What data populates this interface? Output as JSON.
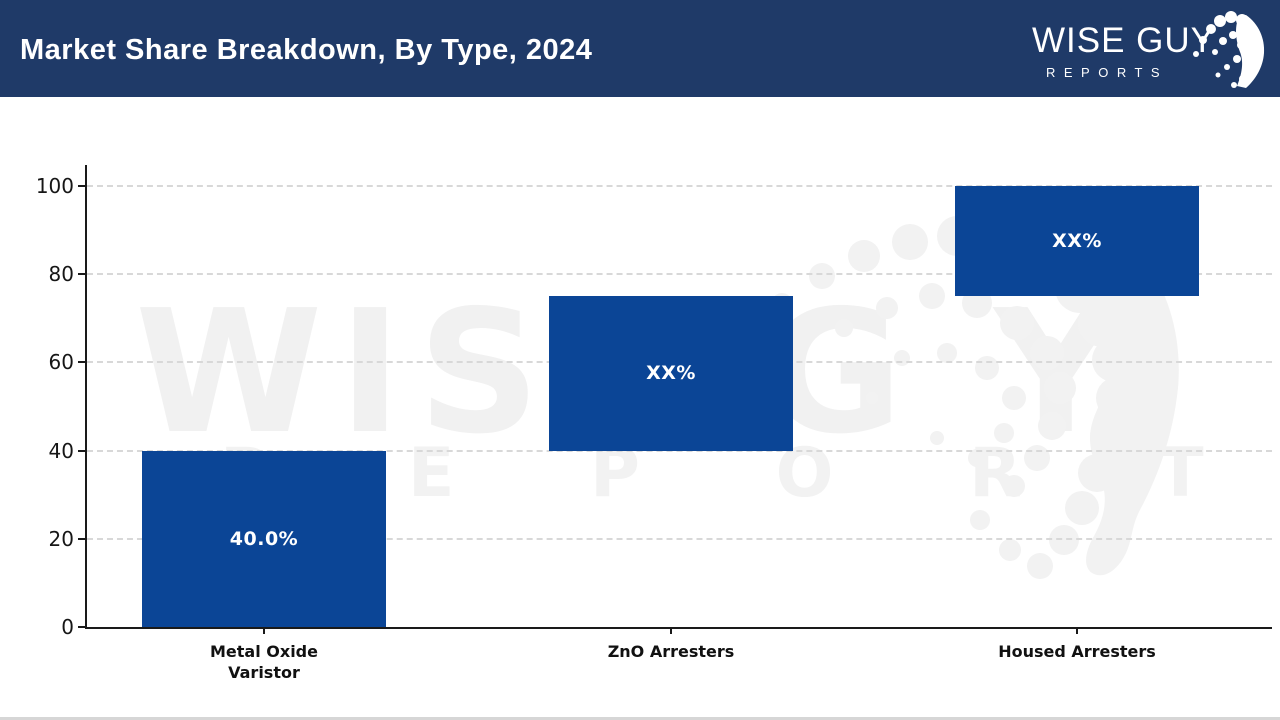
{
  "header": {
    "title": "Market Share Breakdown, By Type, 2024",
    "logo_line1": "WISE GUY",
    "logo_line2": "REPORTS"
  },
  "watermark": {
    "line1": "WISE G Y",
    "line2": "R E P O R T S"
  },
  "chart_data": {
    "type": "bar",
    "subtype": "floating-waterfall",
    "title": "Market Share Breakdown, By Type, 2024",
    "categories": [
      "Metal Oxide Varistor",
      "ZnO Arresters",
      "Housed Arresters"
    ],
    "segments": [
      {
        "category": "Metal Oxide Varistor",
        "start": 0,
        "end": 40,
        "label": "40.0%"
      },
      {
        "category": "ZnO Arresters",
        "start": 40,
        "end": 75,
        "label": "XX%"
      },
      {
        "category": "Housed Arresters",
        "start": 75,
        "end": 100,
        "label": "XX%"
      }
    ],
    "yticks": [
      0,
      20,
      40,
      60,
      80,
      100
    ],
    "ylim": [
      0,
      100
    ],
    "xlabel": "",
    "ylabel": "",
    "legend": "none",
    "grid": "horizontal-dashed"
  },
  "colors": {
    "header_bg": "#1f3a68",
    "bar": "#0b4596",
    "grid": "#d8d8d8",
    "axis": "#1a1a1a",
    "bar_label": "#ffffff",
    "watermark": "#f1f1f1",
    "footer_line": "#d6d6d6"
  }
}
